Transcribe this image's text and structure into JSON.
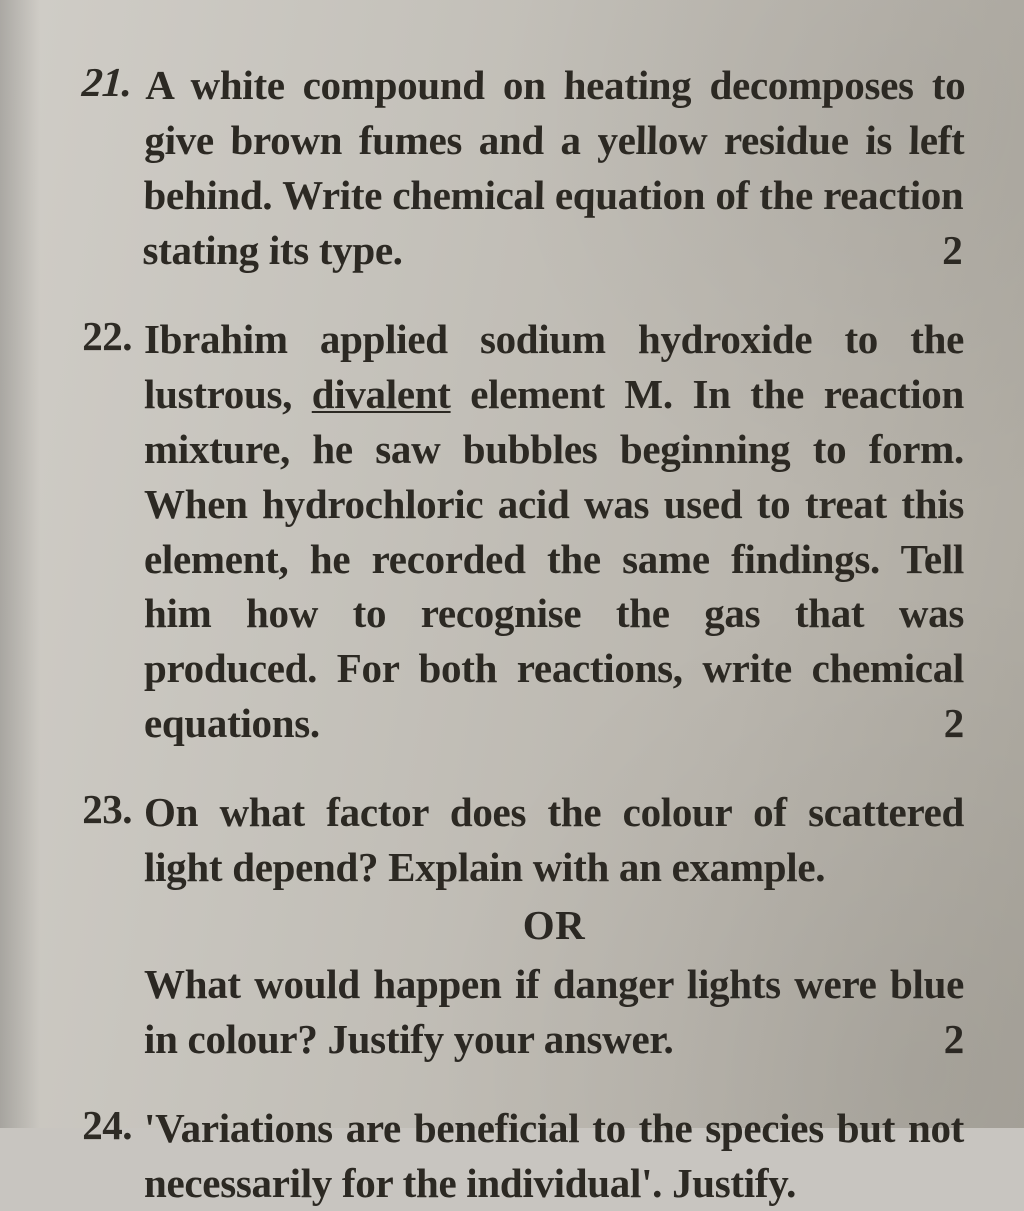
{
  "questions": [
    {
      "num": "21.",
      "text": "A white compound on heating decomposes to give brown fumes and a yellow residue is left behind. Write chemical equation of the reaction stating its type.",
      "marks": "2"
    },
    {
      "num": "22.",
      "text_before": "Ibrahim applied sodium hydroxide to the lustrous, ",
      "underline": "divalent",
      "text_after": " element M. In the reaction mixture, he saw bubbles beginning to form. When hydrochloric acid was used to treat this element, he recorded the same findings. Tell him how to recognise the gas that was produced. For both reactions, write chemical equations.",
      "marks": "2"
    },
    {
      "num": "23.",
      "text": "On what factor does the colour of scattered light depend? Explain with an example.",
      "or": "OR",
      "alt": "What would happen if danger lights were blue in colour? Justify your answer.",
      "marks": "2"
    },
    {
      "num": "24.",
      "text": "'Variations are beneficial to the species but not necessarily for the individual'. Justify."
    }
  ]
}
